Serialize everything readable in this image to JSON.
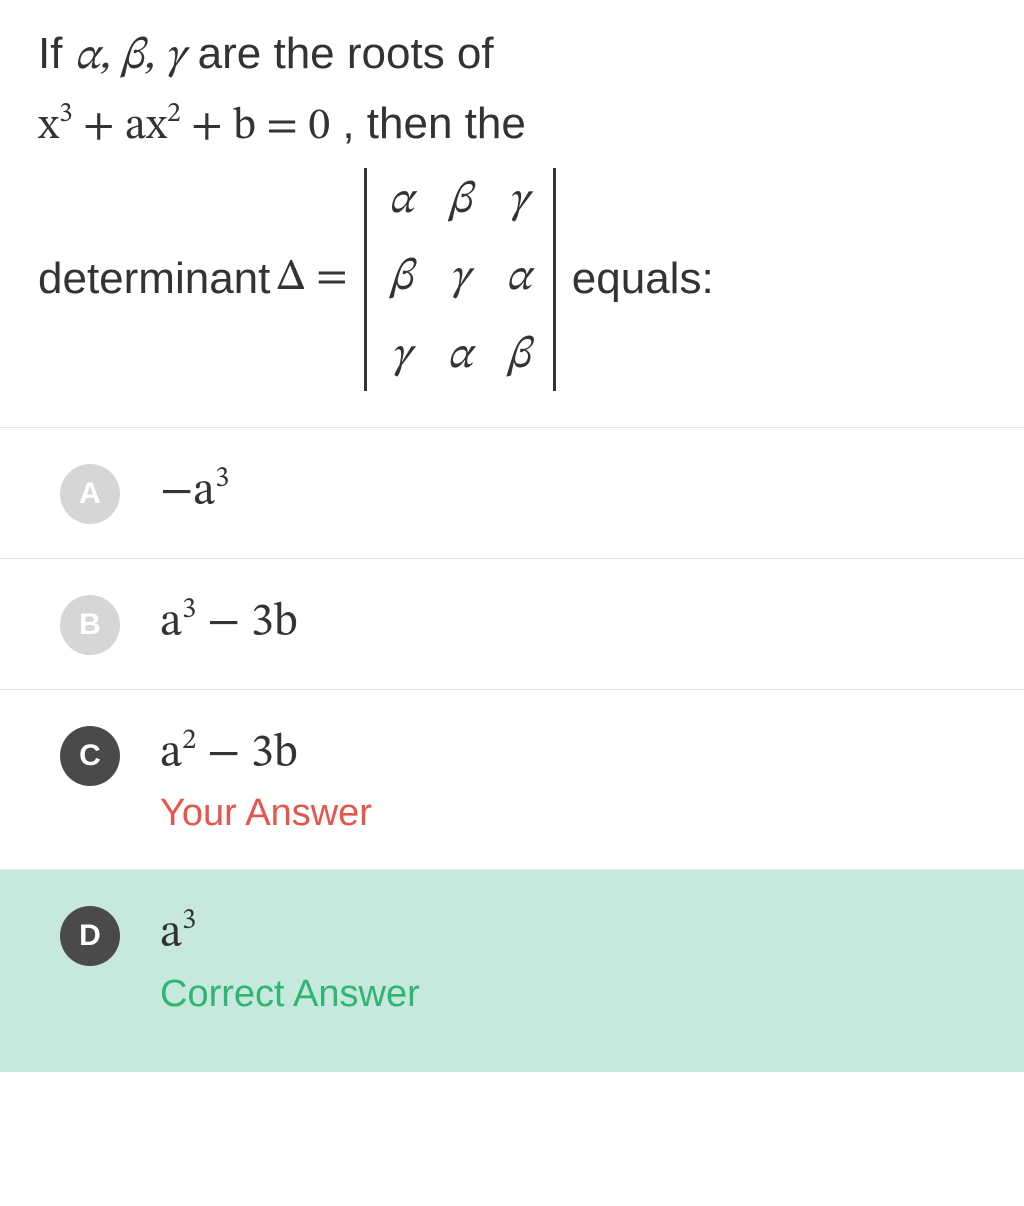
{
  "question": {
    "line1_pre": "If ",
    "line1_roots": "α,  β,  γ",
    "line1_post": " are the roots of",
    "line2_expr_a": "x",
    "line2_expr_b": "3",
    "line2_expr_c": " +  ax",
    "line2_expr_d": "2",
    "line2_expr_e": " +  b = 0",
    "line2_post": " , then the",
    "line3_pre": "determinant ",
    "line3_delta": "Δ = ",
    "line3_post": " equals:",
    "det": [
      "α",
      "β",
      "γ",
      "β",
      "γ",
      "α",
      "γ",
      "α",
      "β"
    ]
  },
  "options": [
    {
      "letter": "A",
      "badge_bg": "#d6d6d6",
      "badge_fg": "#ffffff",
      "text_html_parts": [
        "−a",
        "3"
      ],
      "text_fmt": "sup",
      "annot": null,
      "annot_color": null,
      "row_bg": "#ffffff"
    },
    {
      "letter": "B",
      "badge_bg": "#d6d6d6",
      "badge_fg": "#ffffff",
      "text_html_parts": [
        "a",
        "3",
        " − 3b"
      ],
      "text_fmt": "sup",
      "annot": null,
      "annot_color": null,
      "row_bg": "#ffffff"
    },
    {
      "letter": "C",
      "badge_bg": "#4a4a4a",
      "badge_fg": "#ffffff",
      "text_html_parts": [
        "a",
        "2",
        " − 3b"
      ],
      "text_fmt": "sup",
      "annot": "Your Answer",
      "annot_color": "#e4574c",
      "row_bg": "#ffffff"
    },
    {
      "letter": "D",
      "badge_bg": "#4a4a4a",
      "badge_fg": "#ffffff",
      "text_html_parts": [
        "a",
        "3"
      ],
      "text_fmt": "sup",
      "annot": "Correct Answer",
      "annot_color": "#2fb673",
      "row_bg": "#c6e8dd"
    }
  ],
  "colors": {
    "divider": "#e5e5e5",
    "text": "#333333"
  }
}
